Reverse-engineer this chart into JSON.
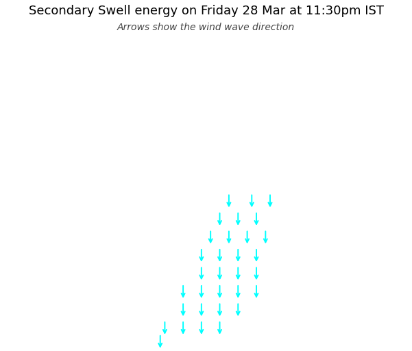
{
  "title": "Secondary Swell energy on Friday 28 Mar at 11:30pm IST",
  "subtitle": "Arrows show the wind wave direction",
  "title_fontsize": 13,
  "subtitle_fontsize": 10,
  "lon_min": 60,
  "lon_max": 105,
  "lat_min": 5,
  "lat_max": 40,
  "arrows": [
    {
      "lon": 85.0,
      "lat": 21.5
    },
    {
      "lon": 87.5,
      "lat": 21.5
    },
    {
      "lon": 89.5,
      "lat": 21.5
    },
    {
      "lon": 84.0,
      "lat": 19.5
    },
    {
      "lon": 86.0,
      "lat": 19.5
    },
    {
      "lon": 88.0,
      "lat": 19.5
    },
    {
      "lon": 83.0,
      "lat": 17.5
    },
    {
      "lon": 85.0,
      "lat": 17.5
    },
    {
      "lon": 87.0,
      "lat": 17.5
    },
    {
      "lon": 89.0,
      "lat": 17.5
    },
    {
      "lon": 82.0,
      "lat": 15.5
    },
    {
      "lon": 84.0,
      "lat": 15.5
    },
    {
      "lon": 86.0,
      "lat": 15.5
    },
    {
      "lon": 88.0,
      "lat": 15.5
    },
    {
      "lon": 82.0,
      "lat": 13.5
    },
    {
      "lon": 84.0,
      "lat": 13.5
    },
    {
      "lon": 86.0,
      "lat": 13.5
    },
    {
      "lon": 88.0,
      "lat": 13.5
    },
    {
      "lon": 80.0,
      "lat": 11.5
    },
    {
      "lon": 82.0,
      "lat": 11.5
    },
    {
      "lon": 84.0,
      "lat": 11.5
    },
    {
      "lon": 86.0,
      "lat": 11.5
    },
    {
      "lon": 88.0,
      "lat": 11.5
    },
    {
      "lon": 80.0,
      "lat": 9.5
    },
    {
      "lon": 82.0,
      "lat": 9.5
    },
    {
      "lon": 84.0,
      "lat": 9.5
    },
    {
      "lon": 86.0,
      "lat": 9.5
    },
    {
      "lon": 78.0,
      "lat": 7.5
    },
    {
      "lon": 80.0,
      "lat": 7.5
    },
    {
      "lon": 82.0,
      "lat": 7.5
    },
    {
      "lon": 84.0,
      "lat": 7.5
    },
    {
      "lon": 77.5,
      "lat": 6.0
    }
  ],
  "arrow_color": "#00ffff",
  "ocean_color": [
    0,
    0,
    18
  ],
  "bay_bengal_color": [
    0,
    0,
    40
  ],
  "title_bg_color": "#ffffff",
  "border_color": "#000000"
}
